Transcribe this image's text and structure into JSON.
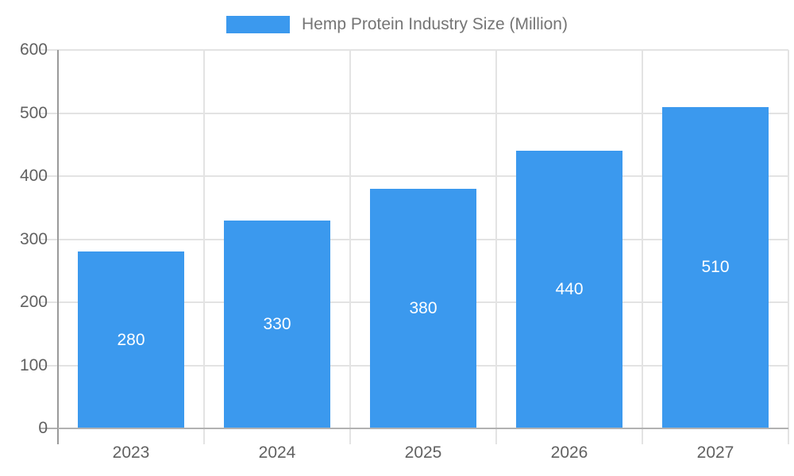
{
  "legend": {
    "label": "Hemp Protein Industry Size (Million)"
  },
  "chart_data": {
    "type": "bar",
    "title": "",
    "categories": [
      "2023",
      "2024",
      "2025",
      "2026",
      "2027"
    ],
    "series": [
      {
        "name": "Hemp Protein Industry Size (Million)",
        "values": [
          280,
          330,
          380,
          440,
          510
        ]
      }
    ],
    "value_labels": [
      "280",
      "330",
      "380",
      "440",
      "510"
    ],
    "value_label_position": "inside-center",
    "xlabel": "",
    "ylabel": "",
    "ylim": [
      0,
      600
    ],
    "yticks": [
      0,
      100,
      200,
      300,
      400,
      500,
      600
    ],
    "grid": "horizontal-and-category-boundaries",
    "legend_position": "top-center"
  },
  "colors": {
    "bar": "#3B99EE",
    "grid": "#e3e3e3",
    "axis_line": "#9a9a9a",
    "baseline": "#b2b2b2",
    "axis_text": "#616161",
    "legend_text": "#757575",
    "bar_label_text": "#ffffff",
    "background": "#ffffff"
  }
}
